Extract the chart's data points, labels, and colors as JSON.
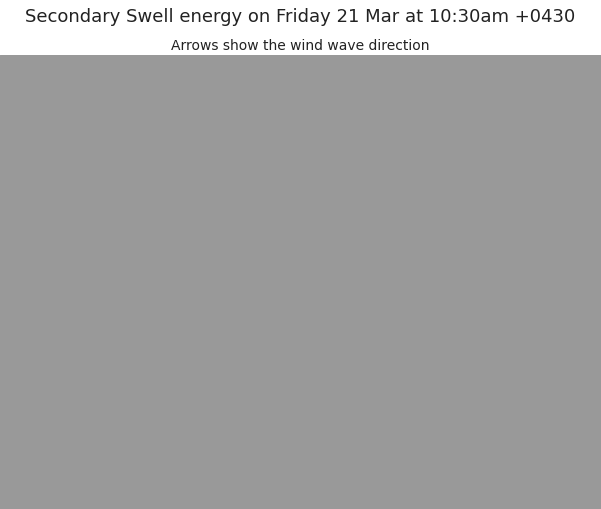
{
  "title": "Secondary Swell energy on Friday 21 Mar at 10:30am +0430",
  "subtitle": "Arrows show the wind wave direction",
  "title_fontsize": 13,
  "subtitle_fontsize": 10,
  "fig_width": 6.01,
  "fig_height": 5.1,
  "dpi": 100,
  "map_extent": [
    43.0,
    82.0,
    22.0,
    47.0
  ],
  "background_color": "#ffffff",
  "ocean_color": "#000000",
  "land_color_base": "#aaaaaa",
  "border_color": "#000000",
  "title_color": "#222222"
}
